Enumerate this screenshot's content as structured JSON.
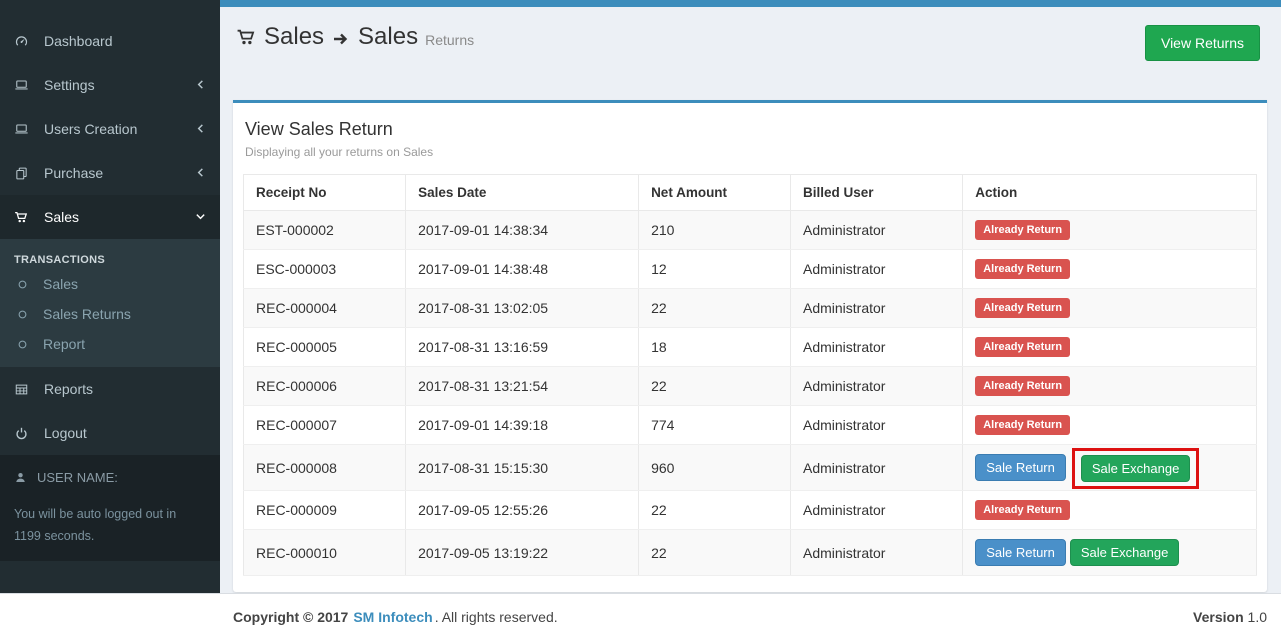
{
  "colors": {
    "accent_blue": "#3c8dbc",
    "sidebar_bg": "#222d32",
    "sidebar_active_bg": "#1e282c",
    "submenu_bg": "#2c3b41",
    "danger_red": "#d9534f",
    "button_blue": "#4a90c9",
    "button_green": "#23a55b",
    "view_returns_green": "#1fa750",
    "highlight_red": "#dd1111"
  },
  "sidebar": {
    "items": [
      {
        "label": "Dashboard",
        "icon": "dashboard",
        "chevron": null,
        "active": false
      },
      {
        "label": "Settings",
        "icon": "laptop",
        "chevron": "left",
        "active": false
      },
      {
        "label": "Users Creation",
        "icon": "laptop",
        "chevron": "left",
        "active": false
      },
      {
        "label": "Purchase",
        "icon": "copy",
        "chevron": "left",
        "active": false
      },
      {
        "label": "Sales",
        "icon": "cart",
        "chevron": "down",
        "active": true
      }
    ],
    "transactions_label": "TRANSACTIONS",
    "submenu": [
      {
        "label": "Sales",
        "icon": "circle"
      },
      {
        "label": "Sales Returns",
        "icon": "circle"
      },
      {
        "label": "Report",
        "icon": "circle"
      }
    ],
    "bottom_items": [
      {
        "label": "Reports",
        "icon": "table"
      },
      {
        "label": "Logout",
        "icon": "power"
      }
    ],
    "user_label": "USER NAME:",
    "auto_logout_text": "You will be auto logged out in 1199 seconds."
  },
  "header": {
    "crumb1": "Sales",
    "crumb2": "Sales",
    "crumb2_sub": "Returns",
    "view_returns_button": "View Returns"
  },
  "panel": {
    "title": "View Sales Return",
    "subtitle": "Displaying all your returns on Sales"
  },
  "table": {
    "columns": [
      "Receipt No",
      "Sales Date",
      "Net Amount",
      "Billed User",
      "Action"
    ],
    "action_labels": {
      "already_return": "Already Return",
      "sale_return": "Sale Return",
      "sale_exchange": "Sale Exchange"
    },
    "rows": [
      {
        "receipt_no": "EST-000002",
        "sales_date": "2017-09-01 14:38:34",
        "net_amount": "210",
        "billed_user": "Administrator",
        "actions": [
          {
            "type": "already_return",
            "highlighted": false
          }
        ]
      },
      {
        "receipt_no": "ESC-000003",
        "sales_date": "2017-09-01 14:38:48",
        "net_amount": "12",
        "billed_user": "Administrator",
        "actions": [
          {
            "type": "already_return",
            "highlighted": false
          }
        ]
      },
      {
        "receipt_no": "REC-000004",
        "sales_date": "2017-08-31 13:02:05",
        "net_amount": "22",
        "billed_user": "Administrator",
        "actions": [
          {
            "type": "already_return",
            "highlighted": false
          }
        ]
      },
      {
        "receipt_no": "REC-000005",
        "sales_date": "2017-08-31 13:16:59",
        "net_amount": "18",
        "billed_user": "Administrator",
        "actions": [
          {
            "type": "already_return",
            "highlighted": false
          }
        ]
      },
      {
        "receipt_no": "REC-000006",
        "sales_date": "2017-08-31 13:21:54",
        "net_amount": "22",
        "billed_user": "Administrator",
        "actions": [
          {
            "type": "already_return",
            "highlighted": false
          }
        ]
      },
      {
        "receipt_no": "REC-000007",
        "sales_date": "2017-09-01 14:39:18",
        "net_amount": "774",
        "billed_user": "Administrator",
        "actions": [
          {
            "type": "already_return",
            "highlighted": false
          }
        ]
      },
      {
        "receipt_no": "REC-000008",
        "sales_date": "2017-08-31 15:15:30",
        "net_amount": "960",
        "billed_user": "Administrator",
        "actions": [
          {
            "type": "sale_return",
            "highlighted": false
          },
          {
            "type": "sale_exchange",
            "highlighted": true
          }
        ]
      },
      {
        "receipt_no": "REC-000009",
        "sales_date": "2017-09-05 12:55:26",
        "net_amount": "22",
        "billed_user": "Administrator",
        "actions": [
          {
            "type": "already_return",
            "highlighted": false
          }
        ]
      },
      {
        "receipt_no": "REC-000010",
        "sales_date": "2017-09-05 13:19:22",
        "net_amount": "22",
        "billed_user": "Administrator",
        "actions": [
          {
            "type": "sale_return",
            "highlighted": false
          },
          {
            "type": "sale_exchange",
            "highlighted": false
          }
        ]
      }
    ]
  },
  "footer": {
    "copyright_prefix": "Copyright © 2017",
    "company": "SM Infotech",
    "copyright_suffix": ". All rights reserved.",
    "version_label": "Version",
    "version_value": "1.0"
  }
}
